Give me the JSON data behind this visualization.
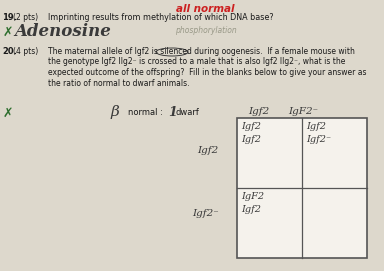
{
  "background_color": "#ddd8cc",
  "title_text": "all normal",
  "q19_label": "19. (2 pts)",
  "q19_question": "Imprinting results from methylation of which DNA base?",
  "q19_answer": "✗ Adenosine",
  "q19_side_note": "phosphorylation",
  "q20_label": "20. (4 pts)",
  "q20_line1": "The maternal allele of Igf2 is silenced during oogenesis.  If a female mouse with",
  "q20_line2": "the genotype Igf2 IIg2⁻ is crossed to a male that is also Igf2 IIg2⁻, what is the",
  "q20_line3": "expected outcome of the offspring?  Fill in the blanks below to give your answer as",
  "q20_line4": "the ratio of normal to dwarf animals.",
  "ratio_line": "✗           β     normal :  1   dwarf        Igf2   Igf2⁻",
  "row1_label": "Igf2",
  "row2_label": "Igf2⁻",
  "cell_tl_1": "Igf2",
  "cell_tl_2": "Igf2",
  "cell_tr_1": "Igf2",
  "cell_tr_2": "Igf2⁻",
  "cell_bl_1": "IgF2",
  "cell_bl_2": "Igf2",
  "cell_br_1": "",
  "text_color": "#1a1a1a",
  "pencil_color": "#3a3a3a",
  "green_color": "#2d6e2d",
  "red_color": "#cc2020",
  "faint_color": "#999988",
  "grid_color": "#555555",
  "box_bg": "#f5f2ec"
}
